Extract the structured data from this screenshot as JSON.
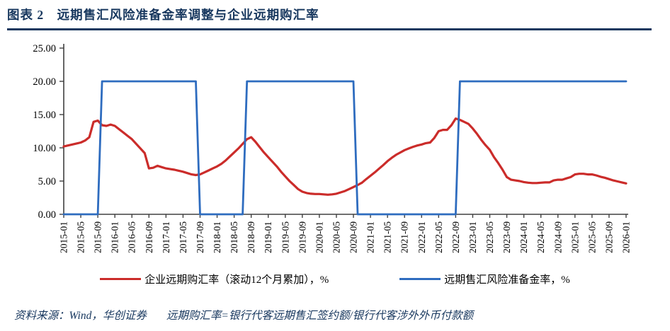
{
  "header": {
    "title": "图表 2　远期售汇风险准备金率调整与企业远期购汇率"
  },
  "chart_data": {
    "type": "line",
    "title": "远期售汇风险准备金率调整与企业远期购汇率",
    "x_start": "2015-01",
    "x_interval_months": 1,
    "x_tick_labels": [
      "2015-01",
      "2015-05",
      "2015-09",
      "2016-01",
      "2016-05",
      "2016-09",
      "2017-01",
      "2017-05",
      "2017-09",
      "2018-01",
      "2018-05",
      "2018-09",
      "2019-01",
      "2019-05",
      "2019-09",
      "2020-01",
      "2020-05",
      "2020-09",
      "2021-01",
      "2021-05",
      "2021-09",
      "2022-01",
      "2022-05",
      "2022-09",
      "2023-01",
      "2023-05",
      "2023-09",
      "2024-01",
      "2024-05",
      "2024-09",
      "2025-01",
      "2025-05",
      "2025-09",
      "2026-01"
    ],
    "x_tick_every_months": 4,
    "y_ticks": [
      "0.00",
      "5.00",
      "10.00",
      "15.00",
      "20.00",
      "25.00"
    ],
    "ylim": [
      0,
      25
    ],
    "grid": false,
    "legend_position": "bottom",
    "series": [
      {
        "name": "企业远期购汇率（滚动12个月累加），%",
        "color": "#CB2C2A",
        "values": [
          10.2,
          10.35,
          10.5,
          10.65,
          10.8,
          11.1,
          11.6,
          13.9,
          14.1,
          13.4,
          13.3,
          13.5,
          13.3,
          12.8,
          12.3,
          11.8,
          11.3,
          10.6,
          9.9,
          9.2,
          6.9,
          7.0,
          7.3,
          7.1,
          6.9,
          6.8,
          6.7,
          6.55,
          6.4,
          6.2,
          6.0,
          5.9,
          6.0,
          6.3,
          6.6,
          6.9,
          7.2,
          7.6,
          8.1,
          8.7,
          9.3,
          9.9,
          10.6,
          11.3,
          11.6,
          10.9,
          10.1,
          9.3,
          8.6,
          7.9,
          7.2,
          6.4,
          5.7,
          5.0,
          4.4,
          3.8,
          3.4,
          3.2,
          3.1,
          3.05,
          3.05,
          3.0,
          2.95,
          3.0,
          3.1,
          3.3,
          3.5,
          3.8,
          4.1,
          4.4,
          4.75,
          5.3,
          5.8,
          6.3,
          6.85,
          7.4,
          8.0,
          8.5,
          8.95,
          9.3,
          9.65,
          9.9,
          10.15,
          10.35,
          10.5,
          10.7,
          10.8,
          11.5,
          12.5,
          12.7,
          12.7,
          13.4,
          14.4,
          14.2,
          13.9,
          13.6,
          12.9,
          12.1,
          11.2,
          10.4,
          9.7,
          8.6,
          7.7,
          6.7,
          5.6,
          5.2,
          5.1,
          5.0,
          4.85,
          4.75,
          4.7,
          4.7,
          4.75,
          4.8,
          4.8,
          5.1,
          5.2,
          5.2,
          5.4,
          5.6,
          6.0,
          6.1,
          6.1,
          6.0,
          6.0,
          5.85,
          5.65,
          5.5,
          5.3,
          5.1,
          4.95,
          4.8,
          4.65
        ]
      },
      {
        "name": "远期售汇风险准备金率，%",
        "color": "#2E6CBF",
        "values": [
          0,
          0,
          0,
          0,
          0,
          0,
          0,
          0,
          0,
          20,
          20,
          20,
          20,
          20,
          20,
          20,
          20,
          20,
          20,
          20,
          20,
          20,
          20,
          20,
          20,
          20,
          20,
          20,
          20,
          20,
          20,
          20,
          0,
          0,
          0,
          0,
          0,
          0,
          0,
          0,
          0,
          0,
          0,
          20,
          20,
          20,
          20,
          20,
          20,
          20,
          20,
          20,
          20,
          20,
          20,
          20,
          20,
          20,
          20,
          20,
          20,
          20,
          20,
          20,
          20,
          20,
          20,
          20,
          20,
          0,
          0,
          0,
          0,
          0,
          0,
          0,
          0,
          0,
          0,
          0,
          0,
          0,
          0,
          0,
          0,
          0,
          0,
          0,
          0,
          0,
          0,
          0,
          0,
          20,
          20,
          20,
          20,
          20,
          20,
          20,
          20,
          20,
          20,
          20,
          20,
          20,
          20,
          20,
          20,
          20,
          20,
          20,
          20,
          20,
          20,
          20,
          20,
          20,
          20,
          20,
          20,
          20,
          20,
          20,
          20,
          20,
          20,
          20,
          20,
          20,
          20,
          20,
          20
        ]
      }
    ]
  },
  "legend": {
    "items": [
      {
        "label": "企业远期购汇率（滚动12个月累加），%",
        "color": "#CB2C2A"
      },
      {
        "label": "远期售汇风险准备金率，%",
        "color": "#2E6CBF"
      }
    ]
  },
  "footer": {
    "source": "资料来源：Wind，华创证券",
    "note": "远期购汇率=银行代客远期售汇签约额/银行代客涉外外币付款额"
  },
  "colors": {
    "accent_navy": "#17375E",
    "red_series": "#CB2C2A",
    "blue_series": "#2E6CBF",
    "axis": "#404040"
  }
}
